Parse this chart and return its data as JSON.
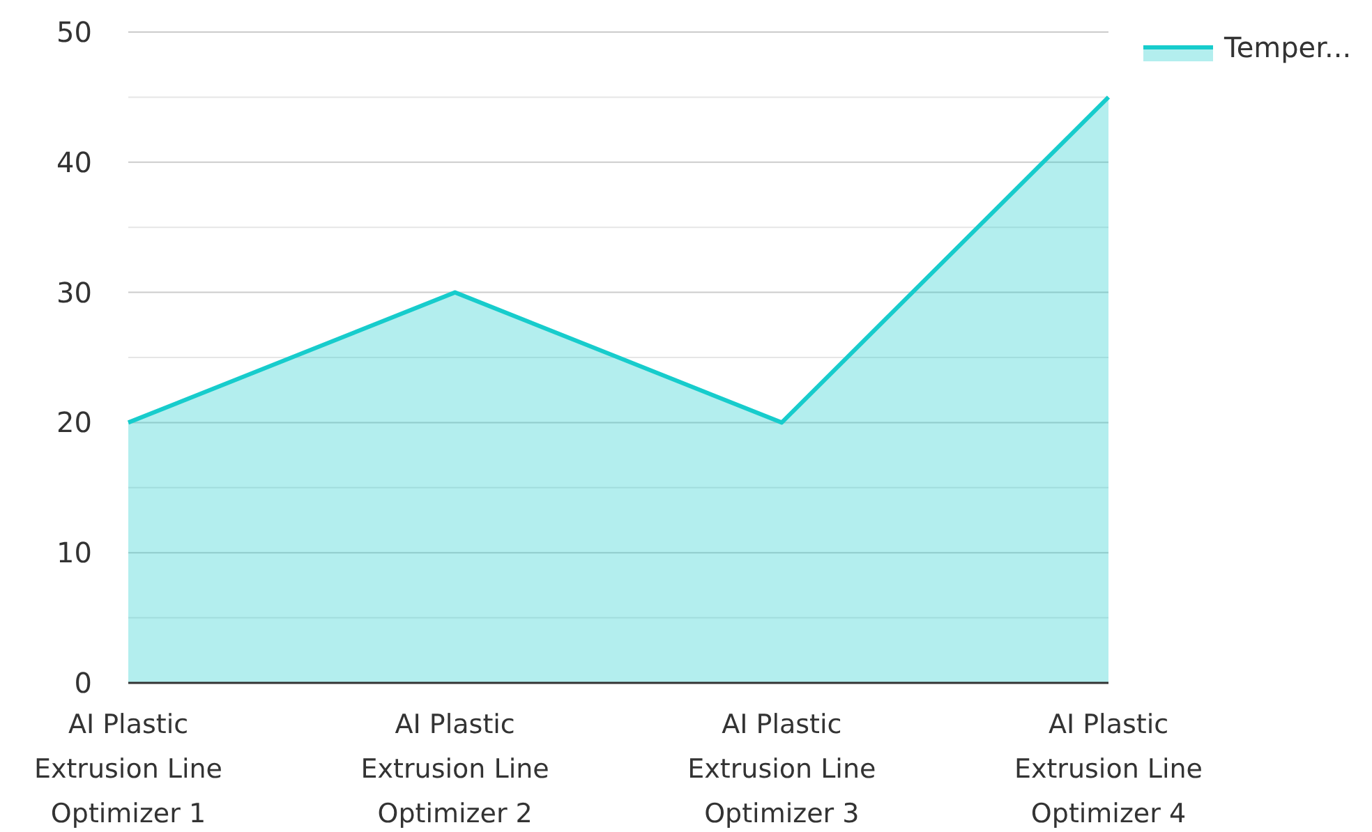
{
  "chart_data": {
    "type": "area",
    "categories": [
      "AI Plastic Extrusion Line Optimizer 1",
      "AI Plastic Extrusion Line Optimizer 2",
      "AI Plastic Extrusion Line Optimizer 3",
      "AI Plastic Extrusion Line Optimizer 4"
    ],
    "series": [
      {
        "name": "Temper...",
        "color": "#17cccc",
        "values": [
          20,
          30,
          20,
          45
        ]
      }
    ],
    "ylim": [
      0,
      50
    ],
    "yticks": [
      0,
      {
        "value": 5,
        "label": null
      },
      10,
      {
        "value": 15,
        "label": null
      },
      20,
      {
        "value": 25,
        "label": null
      },
      30,
      {
        "value": 35,
        "label": null
      },
      40,
      {
        "value": 45,
        "label": null
      },
      50
    ],
    "grid": "y",
    "legend": "top right"
  }
}
